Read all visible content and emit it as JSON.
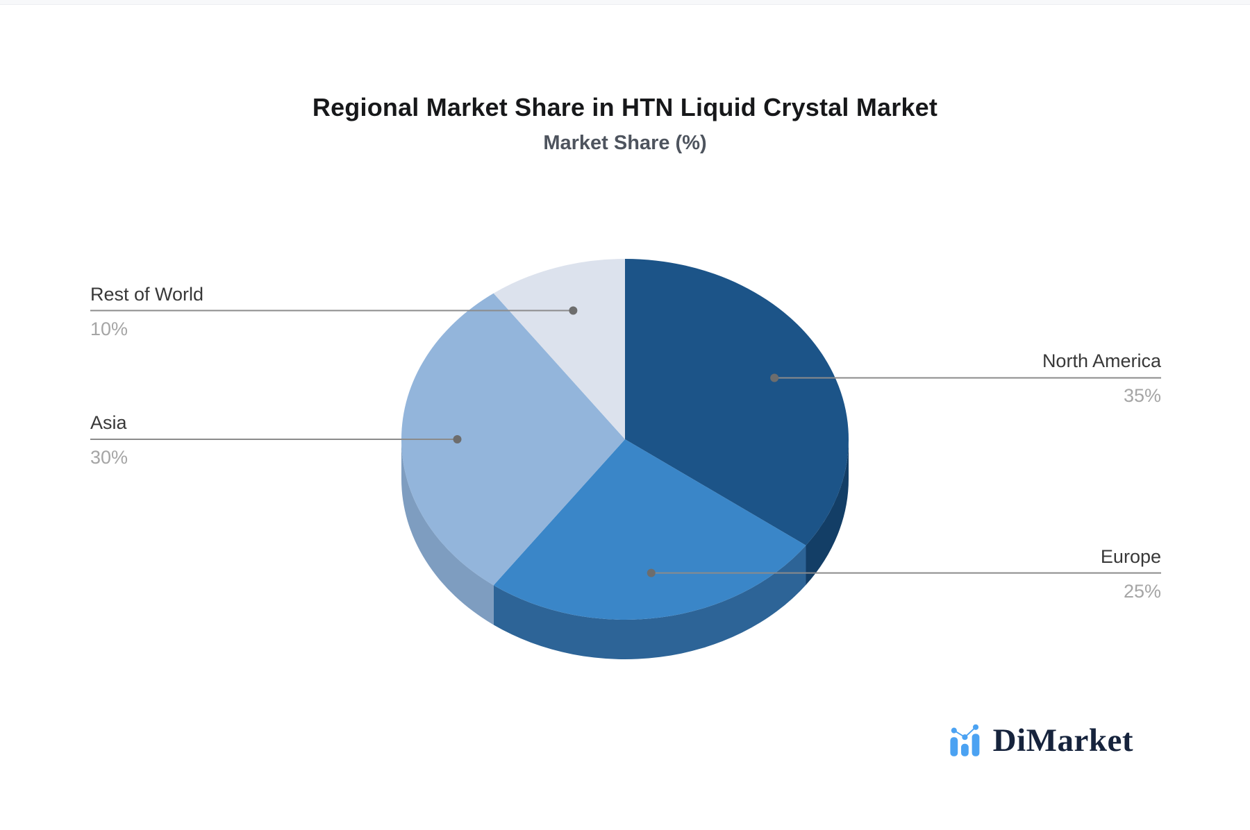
{
  "header": {
    "title": "Regional Market Share in HTN Liquid Crystal Market",
    "subtitle": "Market Share (%)"
  },
  "chart_data": {
    "type": "pie",
    "style": "3d",
    "title": "Regional Market Share in HTN Liquid Crystal Market",
    "subtitle": "Market Share (%)",
    "unit": "%",
    "start_angle_deg": 0,
    "direction": "clockwise",
    "slices": [
      {
        "label": "North America",
        "value": 35,
        "display": "35%",
        "color": "#1c5488",
        "depth_color": "#133e66",
        "label_side": "right"
      },
      {
        "label": "Europe",
        "value": 25,
        "display": "25%",
        "color": "#3a86c8",
        "depth_color": "#2d6497",
        "label_side": "right"
      },
      {
        "label": "Asia",
        "value": 30,
        "display": "30%",
        "color": "#93b5db",
        "depth_color": "#7e9dc0",
        "label_side": "left"
      },
      {
        "label": "Rest of World",
        "value": 10,
        "display": "10%",
        "color": "#dce2ed",
        "depth_color": "#b9c3d6",
        "label_side": "left"
      }
    ],
    "legend": "none",
    "grid": "off",
    "leader_line_color": "#8b8b8b",
    "leader_dot_color": "#6d6d6d",
    "label_color": "#383838",
    "value_color": "#a5a5a5"
  },
  "branding": {
    "name": "DiMarket",
    "logo_icon": "bar-line-chart-icon",
    "icon_color": "#4ba2f2",
    "text_color": "#16233c"
  }
}
